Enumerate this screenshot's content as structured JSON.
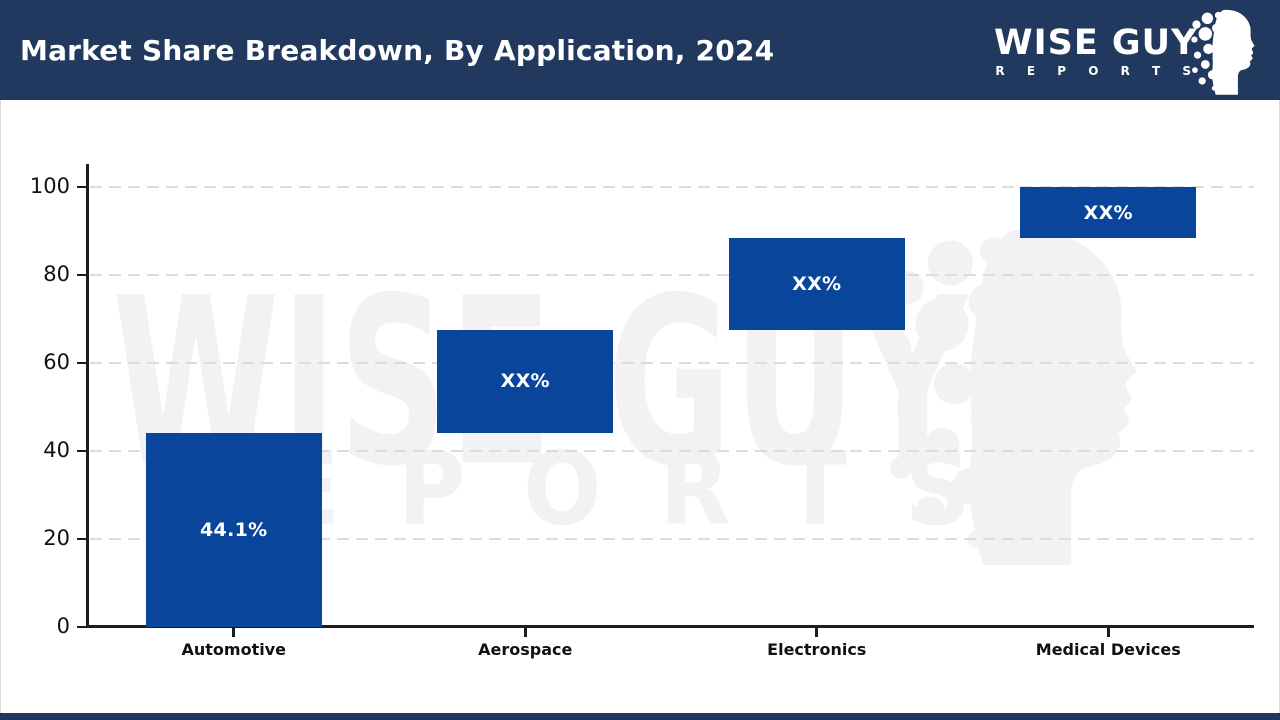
{
  "header": {
    "title": "Market Share Breakdown, By Application, 2024",
    "logo": {
      "brand_line1": "WISE GUY",
      "brand_line2": "R E P O R T S"
    }
  },
  "watermark": {
    "line1": "WISE GUY",
    "line2": "REPORTS"
  },
  "colors": {
    "header_background": "#22395f",
    "bar_blue": "#0a459c",
    "bar_label_text": "#ffffff",
    "axis": "#1c1c1c",
    "gridline": "#dcdcdc",
    "watermark_gray": "#f2f2f4",
    "title_text": "#ffffff",
    "tick_text": "#111111"
  },
  "chart_data": {
    "type": "bar",
    "subtype": "waterfall-stacked-segments",
    "title": "Market Share Breakdown, By Application, 2024",
    "categories": [
      "Automotive",
      "Aerospace",
      "Electronics",
      "Medical Devices"
    ],
    "segments": [
      {
        "category": "Automotive",
        "start": 0,
        "end": 44.1,
        "label": "44.1%"
      },
      {
        "category": "Aerospace",
        "start": 44.1,
        "end": 67.6,
        "label": "XX%"
      },
      {
        "category": "Electronics",
        "start": 67.6,
        "end": 88.3,
        "label": "XX%"
      },
      {
        "category": "Medical Devices",
        "start": 88.3,
        "end": 100,
        "label": "XX%"
      }
    ],
    "xlabel": "",
    "ylabel": "",
    "y_ticks": [
      0,
      20,
      40,
      60,
      80,
      100
    ],
    "ylim": [
      0,
      100
    ],
    "grid": "horizontal-dashed",
    "legend": "none",
    "bar_color": "#0a459c",
    "value_labels_inside_bars": true
  }
}
